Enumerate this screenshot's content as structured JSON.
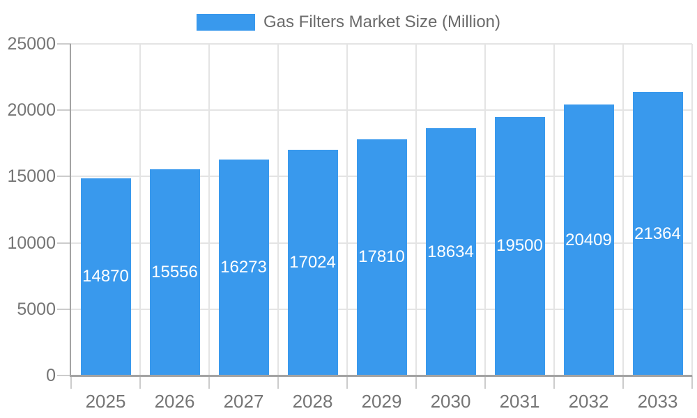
{
  "legend": {
    "label": "Gas Filters Market Size (Million)"
  },
  "colors": {
    "bar": "#3999ED",
    "bar_label": "#ffffff",
    "legend_text": "#6b6b6b",
    "axis_text": "#757575",
    "grid": "#e4e4e4",
    "tick": "#cccccc",
    "axis_line": "#a3a3a3",
    "background": "#ffffff"
  },
  "chart_data": {
    "type": "bar",
    "title": "Gas Filters Market Size (Million)",
    "categories": [
      "2025",
      "2026",
      "2027",
      "2028",
      "2029",
      "2030",
      "2031",
      "2032",
      "2033"
    ],
    "series": [
      {
        "name": "Gas Filters Market Size (Million)",
        "values": [
          14870,
          15556,
          16273,
          17024,
          17810,
          18634,
          19500,
          20409,
          21364
        ]
      }
    ],
    "xlabel": "",
    "ylabel": "",
    "ylim": [
      0,
      25000
    ],
    "yticks": [
      0,
      5000,
      10000,
      15000,
      20000,
      25000
    ],
    "grid": true,
    "legend_position": "top-center",
    "value_labels": "inside-center-white"
  }
}
